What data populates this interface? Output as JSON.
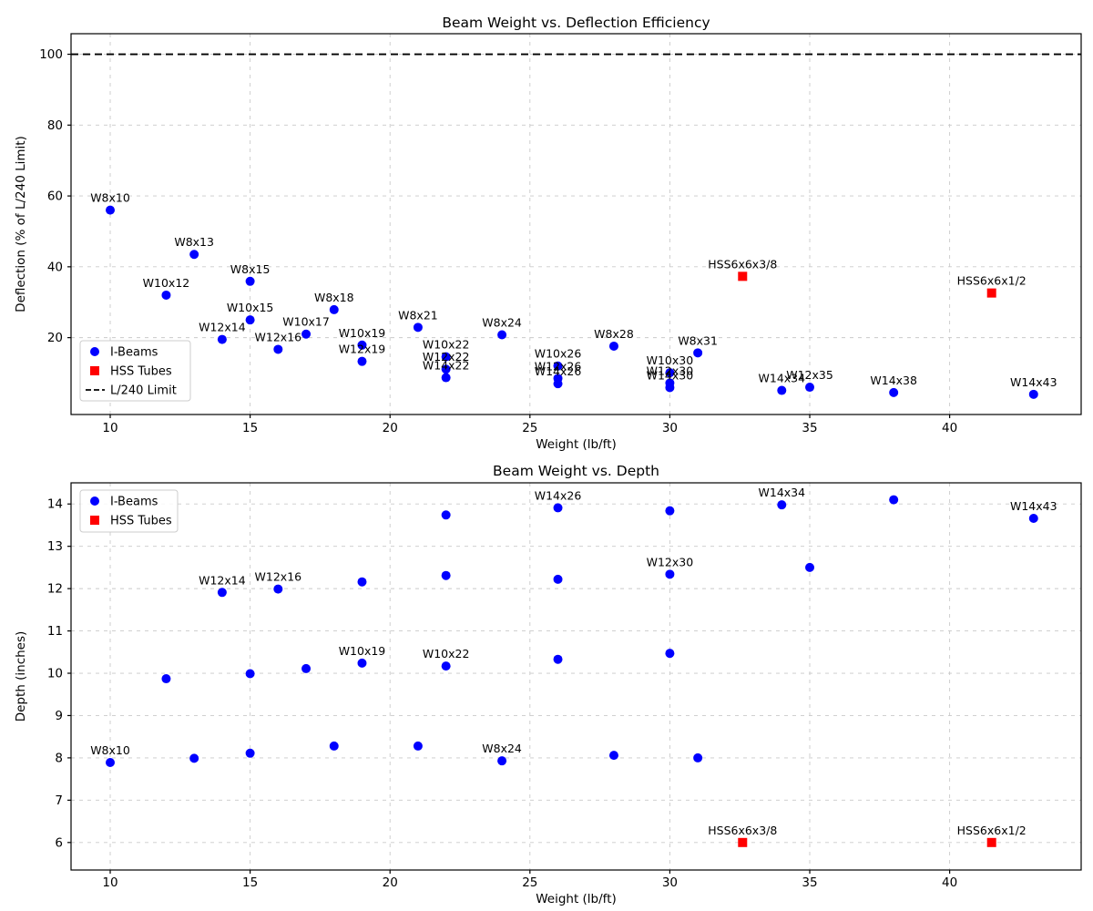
{
  "figure": {
    "background": "#ffffff",
    "top_title": "Beam Weight vs. Deflection Efficiency",
    "bottom_title": "Beam Weight vs. Depth"
  },
  "colors": {
    "ibeam": "#0000ff",
    "hss": "#ff0000",
    "limit_line": "#000000",
    "grid": "#c9c9c9",
    "spine": "#000000",
    "legend_border": "#cccccc",
    "text": "#000000"
  },
  "chart_data": [
    {
      "type": "scatter",
      "title": "Beam Weight vs. Deflection Efficiency",
      "xlabel": "Weight (lb/ft)",
      "ylabel": "Deflection (% of L/240 Limit)",
      "xlim": [
        8.6,
        44.7
      ],
      "ylim": [
        -1.7,
        105.8
      ],
      "xticks": [
        10,
        15,
        20,
        25,
        30,
        35,
        40
      ],
      "yticks": [
        20,
        40,
        60,
        80,
        100
      ],
      "grid": true,
      "legend": {
        "position": "lower-left",
        "entries": [
          {
            "label": "I-Beams",
            "marker": "circle",
            "color": "#0000ff"
          },
          {
            "label": "HSS Tubes",
            "marker": "square",
            "color": "#ff0000"
          },
          {
            "label": "L/240 Limit",
            "marker": "dashed-line",
            "color": "#000000"
          }
        ]
      },
      "limit_line": {
        "y": 100,
        "label": "L/240 Limit",
        "style": "dashed",
        "color": "#000000"
      },
      "series": [
        {
          "name": "I-Beams",
          "marker": "circle",
          "color": "#0000ff",
          "points": [
            {
              "label": "W8x10",
              "x": 10,
              "y": 56.0,
              "labeled": true
            },
            {
              "label": "W10x12",
              "x": 12,
              "y": 32.0,
              "labeled": true
            },
            {
              "label": "W8x13",
              "x": 13,
              "y": 43.5,
              "labeled": true
            },
            {
              "label": "W12x14",
              "x": 14,
              "y": 19.5,
              "labeled": true
            },
            {
              "label": "W8x15",
              "x": 15,
              "y": 35.9,
              "labeled": true
            },
            {
              "label": "W10x15",
              "x": 15,
              "y": 25.0,
              "labeled": true
            },
            {
              "label": "W12x16",
              "x": 16,
              "y": 16.7,
              "labeled": true
            },
            {
              "label": "W10x17",
              "x": 17,
              "y": 21.0,
              "labeled": true
            },
            {
              "label": "W8x18",
              "x": 18,
              "y": 27.9,
              "labeled": true
            },
            {
              "label": "W10x19",
              "x": 19,
              "y": 17.9,
              "labeled": true
            },
            {
              "label": "W12x19",
              "x": 19,
              "y": 13.3,
              "labeled": true
            },
            {
              "label": "W8x21",
              "x": 21,
              "y": 22.9,
              "labeled": true
            },
            {
              "label": "W10x22",
              "x": 22,
              "y": 14.6,
              "labeled": true
            },
            {
              "label": "W12x22",
              "x": 22,
              "y": 11.1,
              "labeled": true
            },
            {
              "label": "W14x22",
              "x": 22,
              "y": 8.7,
              "labeled": true
            },
            {
              "label": "W8x24",
              "x": 24,
              "y": 20.8,
              "labeled": true
            },
            {
              "label": "W10x26",
              "x": 26,
              "y": 12.0,
              "labeled": true
            },
            {
              "label": "W12x26",
              "x": 26,
              "y": 8.5,
              "labeled": true
            },
            {
              "label": "W14x26",
              "x": 26,
              "y": 7.0,
              "labeled": true
            },
            {
              "label": "W8x28",
              "x": 28,
              "y": 17.6,
              "labeled": true
            },
            {
              "label": "W10x30",
              "x": 30,
              "y": 10.1,
              "labeled": true
            },
            {
              "label": "W12x30",
              "x": 30,
              "y": 7.2,
              "labeled": true
            },
            {
              "label": "W14x30",
              "x": 30,
              "y": 5.9,
              "labeled": true
            },
            {
              "label": "W8x31",
              "x": 31,
              "y": 15.7,
              "labeled": true
            },
            {
              "label": "W14x34",
              "x": 34,
              "y": 5.1,
              "labeled": true
            },
            {
              "label": "W12x35",
              "x": 35,
              "y": 6.0,
              "labeled": true
            },
            {
              "label": "W14x38",
              "x": 38,
              "y": 4.5,
              "labeled": true
            },
            {
              "label": "W14x43",
              "x": 43,
              "y": 4.0,
              "labeled": true
            }
          ]
        },
        {
          "name": "HSS Tubes",
          "marker": "square",
          "color": "#ff0000",
          "points": [
            {
              "label": "HSS6x6x3/8",
              "x": 32.6,
              "y": 37.3,
              "labeled": true
            },
            {
              "label": "HSS6x6x1/2",
              "x": 41.5,
              "y": 32.6,
              "labeled": true
            }
          ]
        }
      ]
    },
    {
      "type": "scatter",
      "title": "Beam Weight vs. Depth",
      "xlabel": "Weight (lb/ft)",
      "ylabel": "Depth (inches)",
      "xlim": [
        8.6,
        44.7
      ],
      "ylim": [
        5.35,
        14.5
      ],
      "xticks": [
        10,
        15,
        20,
        25,
        30,
        35,
        40
      ],
      "yticks": [
        6,
        7,
        8,
        9,
        10,
        11,
        12,
        13,
        14
      ],
      "grid": true,
      "legend": {
        "position": "upper-left",
        "entries": [
          {
            "label": "I-Beams",
            "marker": "circle",
            "color": "#0000ff"
          },
          {
            "label": "HSS Tubes",
            "marker": "square",
            "color": "#ff0000"
          }
        ]
      },
      "series": [
        {
          "name": "I-Beams",
          "marker": "circle",
          "color": "#0000ff",
          "points": [
            {
              "label": "W8x10",
              "x": 10,
              "y": 7.89,
              "labeled": true
            },
            {
              "label": "W10x12",
              "x": 12,
              "y": 9.87,
              "labeled": false
            },
            {
              "label": "W8x13",
              "x": 13,
              "y": 7.99,
              "labeled": false
            },
            {
              "label": "W12x14",
              "x": 14,
              "y": 11.91,
              "labeled": true
            },
            {
              "label": "W8x15",
              "x": 15,
              "y": 8.11,
              "labeled": false
            },
            {
              "label": "W10x15",
              "x": 15,
              "y": 9.99,
              "labeled": false
            },
            {
              "label": "W12x16",
              "x": 16,
              "y": 11.99,
              "labeled": true
            },
            {
              "label": "W10x17",
              "x": 17,
              "y": 10.11,
              "labeled": false
            },
            {
              "label": "W8x18",
              "x": 18,
              "y": 8.28,
              "labeled": false
            },
            {
              "label": "W10x19",
              "x": 19,
              "y": 10.24,
              "labeled": true
            },
            {
              "label": "W12x19",
              "x": 19,
              "y": 12.16,
              "labeled": false
            },
            {
              "label": "W8x21",
              "x": 21,
              "y": 8.28,
              "labeled": false
            },
            {
              "label": "W10x22",
              "x": 22,
              "y": 10.17,
              "labeled": true
            },
            {
              "label": "W12x22",
              "x": 22,
              "y": 12.31,
              "labeled": false
            },
            {
              "label": "W14x22",
              "x": 22,
              "y": 13.74,
              "labeled": false
            },
            {
              "label": "W8x24",
              "x": 24,
              "y": 7.93,
              "labeled": true
            },
            {
              "label": "W10x26",
              "x": 26,
              "y": 10.33,
              "labeled": false
            },
            {
              "label": "W12x26",
              "x": 26,
              "y": 12.22,
              "labeled": false
            },
            {
              "label": "W14x26",
              "x": 26,
              "y": 13.91,
              "labeled": true
            },
            {
              "label": "W8x28",
              "x": 28,
              "y": 8.06,
              "labeled": false
            },
            {
              "label": "W10x30",
              "x": 30,
              "y": 10.47,
              "labeled": false
            },
            {
              "label": "W12x30",
              "x": 30,
              "y": 12.34,
              "labeled": true
            },
            {
              "label": "W14x30",
              "x": 30,
              "y": 13.84,
              "labeled": false
            },
            {
              "label": "W8x31",
              "x": 31,
              "y": 8.0,
              "labeled": false
            },
            {
              "label": "W14x34",
              "x": 34,
              "y": 13.98,
              "labeled": true
            },
            {
              "label": "W12x35",
              "x": 35,
              "y": 12.5,
              "labeled": false
            },
            {
              "label": "W14x38",
              "x": 38,
              "y": 14.1,
              "labeled": false
            },
            {
              "label": "W14x43",
              "x": 43,
              "y": 13.66,
              "labeled": true
            }
          ]
        },
        {
          "name": "HSS Tubes",
          "marker": "square",
          "color": "#ff0000",
          "points": [
            {
              "label": "HSS6x6x3/8",
              "x": 32.6,
              "y": 6.0,
              "labeled": true
            },
            {
              "label": "HSS6x6x1/2",
              "x": 41.5,
              "y": 6.0,
              "labeled": true
            }
          ]
        }
      ]
    }
  ]
}
